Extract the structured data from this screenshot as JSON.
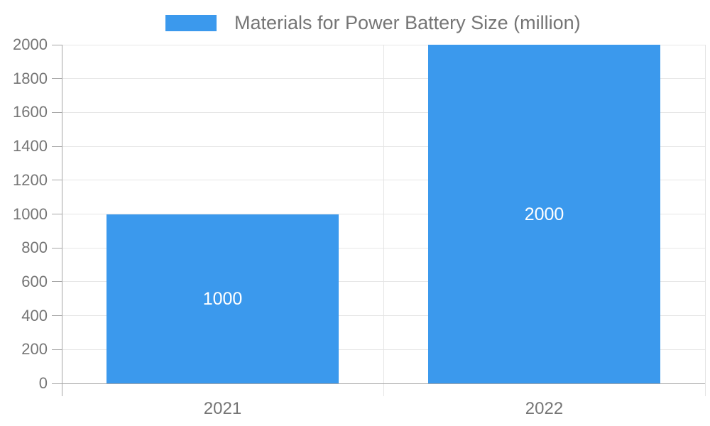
{
  "chart_data": {
    "type": "bar",
    "title": "",
    "legend_label": "Materials for Power Battery Size (million)",
    "legend_position": "top",
    "categories": [
      "2021",
      "2022"
    ],
    "series": [
      {
        "name": "Materials for Power Battery Size (million)",
        "values": [
          1000,
          2000
        ]
      }
    ],
    "data_labels": [
      "1000",
      "2000"
    ],
    "xlabel": "",
    "ylabel": "",
    "ylim": [
      0,
      2000
    ],
    "yticks": [
      0,
      200,
      400,
      600,
      800,
      1000,
      1200,
      1400,
      1600,
      1800,
      2000
    ],
    "grid": true
  },
  "colors": {
    "bar": "#3B99ED",
    "axis_line": "#A6A6A6",
    "gridline": "#E6E6E6",
    "boundary_line": "#E4E4E4",
    "tick_label": "#757575",
    "legend_text": "#757575",
    "data_label": "#FFFFFF",
    "background": "#FFFFFF"
  }
}
